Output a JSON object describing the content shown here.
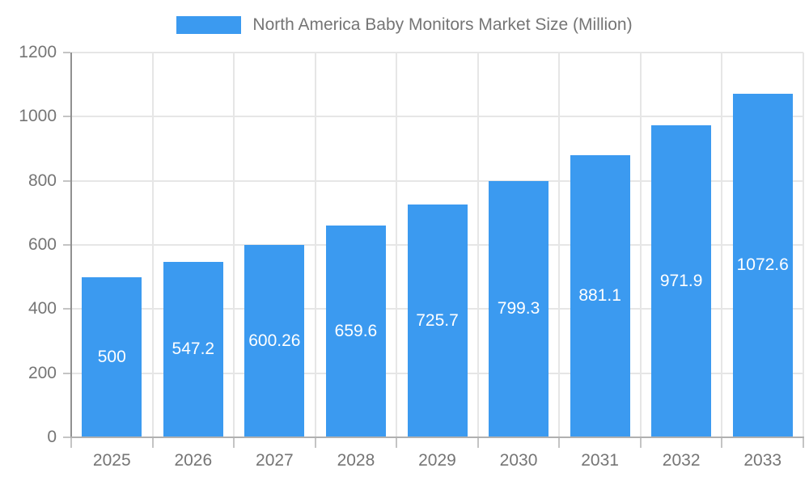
{
  "chart_data": {
    "type": "bar",
    "title": "North America Baby Monitors Market Size (Million)",
    "categories": [
      "2025",
      "2026",
      "2027",
      "2028",
      "2029",
      "2030",
      "2031",
      "2032",
      "2033"
    ],
    "values": [
      500,
      547.2,
      600.26,
      659.6,
      725.7,
      799.3,
      881.1,
      971.9,
      1072.6
    ],
    "value_labels": [
      "500",
      "547.2",
      "600.26",
      "659.6",
      "725.7",
      "799.3",
      "881.1",
      "971.9",
      "1072.6"
    ],
    "xlabel": "",
    "ylabel": "",
    "ylim": [
      0,
      1200
    ],
    "yticks": [
      0,
      200,
      400,
      600,
      800,
      1000,
      1200
    ],
    "grid": true,
    "legend_position": "top",
    "colors": {
      "bar": "#3B9AF0",
      "value_label": "#FFFFFF",
      "tick_text": "#757575",
      "legend_text": "#757575",
      "gridline": "#E6E6E6",
      "y_axis": "#909090",
      "x_axis": "#B0B0B0",
      "tick_mark": "#C4C4C4",
      "background": "#FFFFFF"
    }
  }
}
